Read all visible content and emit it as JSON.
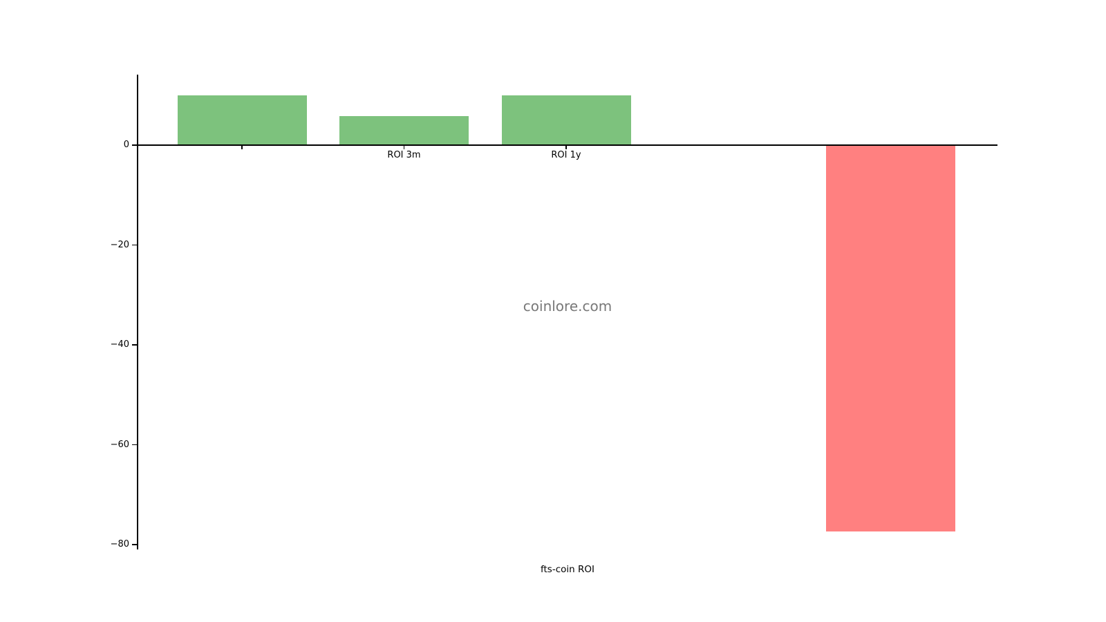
{
  "watermark": {
    "text": "coinlore.com",
    "color": "#787878"
  },
  "chart_data": {
    "type": "bar",
    "title": "fts-coin ROI",
    "xlabel": "",
    "ylabel": "",
    "grid": false,
    "legend": null,
    "ylim": [
      -80.3,
      14.1
    ],
    "colors": {
      "positive": "#7dc27d",
      "negative": "#ff8080",
      "axis": "#000000"
    },
    "bars": [
      {
        "label": "",
        "slot": 0,
        "value": 10,
        "color": "#7dc27d"
      },
      {
        "label": "ROI 3m",
        "slot": 1,
        "value": 5.8,
        "color": "#7dc27d"
      },
      {
        "label": "ROI 1y",
        "slot": 2,
        "value": 10,
        "color": "#7dc27d"
      },
      {
        "label": "",
        "slot": 4,
        "value": -77.4,
        "color": "#ff8080"
      }
    ],
    "x_ticks": [
      {
        "slot": 0,
        "label": ""
      },
      {
        "slot": 1,
        "label": "ROI 3m"
      },
      {
        "slot": 2,
        "label": "ROI 1y"
      }
    ],
    "y_ticks": [
      {
        "value": 0,
        "label": "0"
      },
      {
        "value": -20,
        "label": "−20"
      },
      {
        "value": -40,
        "label": "−40"
      },
      {
        "value": -60,
        "label": "−60"
      },
      {
        "value": -80,
        "label": "−80"
      }
    ]
  }
}
